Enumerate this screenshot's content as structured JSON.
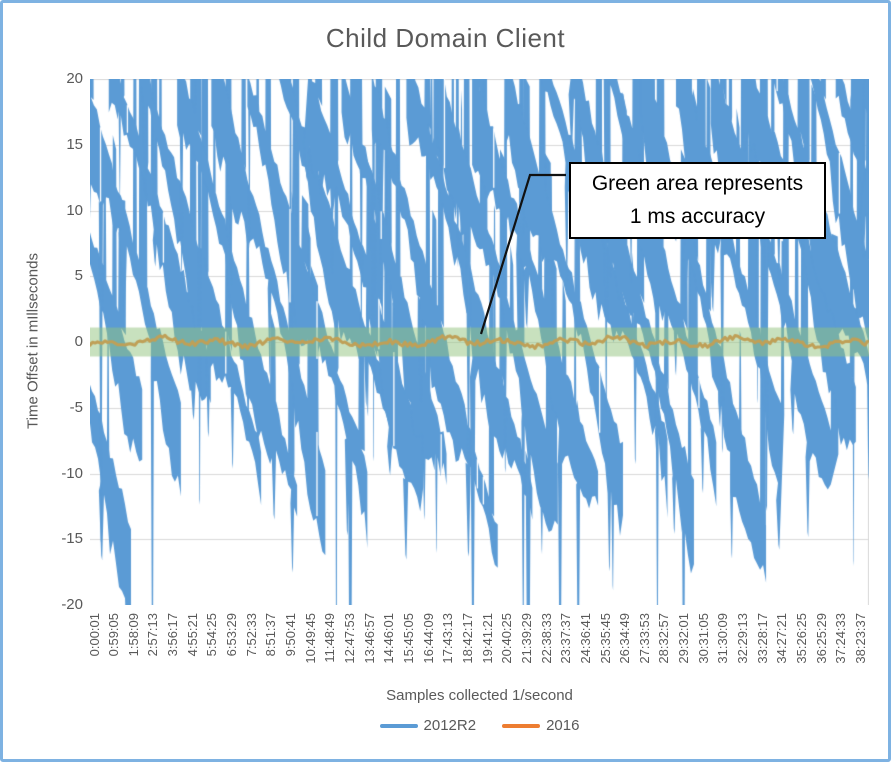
{
  "window": {
    "border_color": "#7EB2E2",
    "background": "#FFFFFF"
  },
  "chart_data": {
    "type": "line",
    "title": "Child Domain Client",
    "xlabel": "Samples collected 1/second",
    "ylabel": "Time Offset in mIllseconds",
    "ylim": [
      -20,
      20
    ],
    "ytick_interval": 5,
    "yticks": [
      "20",
      "15",
      "10",
      "5",
      "0",
      "-5",
      "-10",
      "-15",
      "-20"
    ],
    "xticks": [
      "0:00:01",
      "0:59:05",
      "1:58:09",
      "2:57:13",
      "3:56:17",
      "4:55:21",
      "5:54:25",
      "6:53:29",
      "7:52:33",
      "8:51:37",
      "9:50:41",
      "10:49:45",
      "11:48:49",
      "12:47:53",
      "13:46:57",
      "14:46:01",
      "15:45:05",
      "16:44:09",
      "17:43:13",
      "18:42:17",
      "19:41:21",
      "20:40:25",
      "21:39:29",
      "22:38:33",
      "23:37:37",
      "24:36:41",
      "25:35:45",
      "26:34:49",
      "27:33:53",
      "28:32:57",
      "29:32:01",
      "30:31:05",
      "31:30:09",
      "32:29:13",
      "33:28:17",
      "34:27:21",
      "35:26:25",
      "36:25:29",
      "37:24:33",
      "38:23:37"
    ],
    "grid": "horizontal gridlines every 5 ms, light gray",
    "gridline_color": "#D9D9D9",
    "text_color": "#595959",
    "legend_position": "bottom",
    "series": [
      {
        "name": "2012R2",
        "color": "#5B9BD5",
        "behavior": "dense sawtooth: offset repeatedly jumps to ~+20 ms (clipped at axis top) and decays down to about -5 ms over ~20-25 min, with frequent narrow spikes reaching as low as -20 ms; fills most of the +/-20 ms range for the whole capture",
        "approx_range_ms": [
          -20,
          20
        ]
      },
      {
        "name": "2016",
        "color": "#ED7D31",
        "behavior": "stays flat at ~0 ms offset, within roughly +/-0.5 ms for the entire capture",
        "approx_range_ms": [
          -0.6,
          0.6
        ]
      }
    ],
    "accuracy_band": {
      "color": "#92C47D",
      "opacity": 0.5,
      "range_ms": [
        -1.1,
        1.1
      ],
      "meaning": "1 ms accuracy"
    }
  },
  "annotation": {
    "text": "Green area represents 1 ms accuracy"
  }
}
